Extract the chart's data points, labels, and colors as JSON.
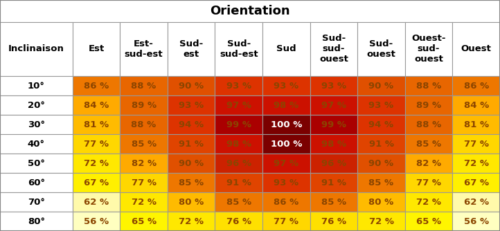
{
  "title": "Orientation",
  "row_header": "Inclinaison",
  "col_headers": [
    "Est",
    "Est-\nsud-est",
    "Sud-\nest",
    "Sud-\nsud-est",
    "Sud",
    "Sud-\nsud-\nouest",
    "Sud-\nouest",
    "Ouest-\nsud-\nouest",
    "Ouest"
  ],
  "row_labels": [
    "10°",
    "20°",
    "30°",
    "40°",
    "50°",
    "60°",
    "70°",
    "80°"
  ],
  "values": [
    [
      86,
      88,
      90,
      93,
      93,
      93,
      90,
      88,
      86
    ],
    [
      84,
      89,
      93,
      97,
      98,
      97,
      93,
      89,
      84
    ],
    [
      81,
      88,
      94,
      99,
      100,
      99,
      94,
      88,
      81
    ],
    [
      77,
      85,
      91,
      98,
      100,
      98,
      91,
      85,
      77
    ],
    [
      72,
      82,
      90,
      96,
      97,
      96,
      90,
      82,
      72
    ],
    [
      67,
      77,
      85,
      91,
      93,
      91,
      85,
      77,
      67
    ],
    [
      62,
      72,
      80,
      85,
      86,
      85,
      80,
      72,
      62
    ],
    [
      56,
      65,
      72,
      76,
      77,
      76,
      72,
      65,
      56
    ]
  ],
  "special_white_text": [
    [
      2,
      4
    ],
    [
      3,
      4
    ]
  ],
  "colors": {
    "100": "#7B0000",
    "99": "#AA0000",
    "97_98": "#CC0000",
    "93_96": "#DD3300",
    "90_92": "#EE5500",
    "85_89": "#EE7700",
    "82_84": "#FFAA00",
    "80_81": "#FFBB00",
    "77_79": "#FFDD00",
    "72_76": "#FFE800",
    "67_71": "#FFF000",
    "65_66": "#FFF500",
    "62_64": "#FFFAAA",
    "56_61": "#FFFFC0"
  },
  "text_color_dark": "#8B4500",
  "text_color_white": "#FFFFFF",
  "title_fontsize": 13,
  "header_fontsize": 9.5,
  "cell_fontsize": 9.5,
  "figwidth": 7.22,
  "figheight": 3.34,
  "dpi": 100
}
